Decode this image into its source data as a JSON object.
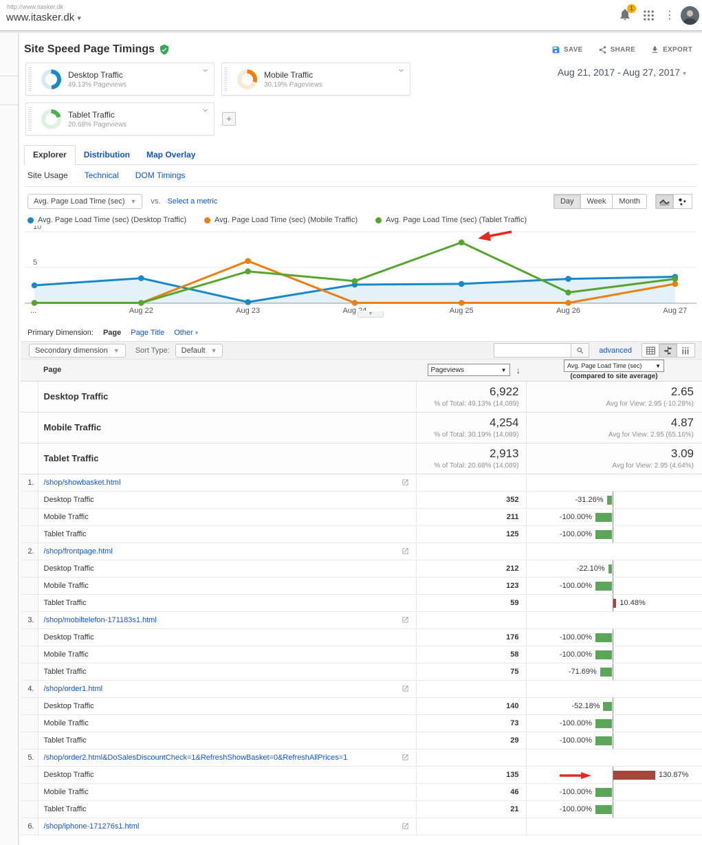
{
  "topbar": {
    "property_url": "http://www.itasker.dk",
    "account_name": "www.itasker.dk",
    "notifications_count": "1"
  },
  "report": {
    "title": "Site Speed Page Timings",
    "actions": {
      "save": "SAVE",
      "share": "SHARE",
      "export": "EXPORT"
    },
    "date_range": "Aug 21, 2017 - Aug 27, 2017"
  },
  "segments": [
    {
      "title": "Desktop Traffic",
      "subtitle": "49.13% Pageviews",
      "pct": 49.13,
      "color": "#1789cb"
    },
    {
      "title": "Mobile Traffic",
      "subtitle": "30.19% Pageviews",
      "pct": 30.19,
      "color": "#ee7e0e"
    },
    {
      "title": "Tablet Traffic",
      "subtitle": "20.68% Pageviews",
      "pct": 20.68,
      "color": "#4caf50"
    }
  ],
  "add_segment_label": "+",
  "tabs": {
    "explorer": "Explorer",
    "distribution": "Distribution",
    "map_overlay": "Map Overlay"
  },
  "subtabs": {
    "site_usage": "Site Usage",
    "technical": "Technical",
    "dom_timings": "DOM Timings"
  },
  "metric_bar": {
    "metric_select": "Avg. Page Load Time (sec)",
    "vs_label": "vs.",
    "select_metric": "Select a metric",
    "granularity": [
      "Day",
      "Week",
      "Month"
    ],
    "granularity_active": "Day"
  },
  "chart_data": {
    "type": "line",
    "x": [
      "Aug 21",
      "Aug 22",
      "Aug 23",
      "Aug 24",
      "Aug 25",
      "Aug 26",
      "Aug 27"
    ],
    "x_tick_labels": [
      "...",
      "Aug 22",
      "Aug 23",
      "Aug 24",
      "Aug 25",
      "Aug 26",
      "Aug 27"
    ],
    "ylim": [
      0,
      10
    ],
    "yticks": [
      5,
      10
    ],
    "legend_position": "top",
    "grid": true,
    "series": [
      {
        "name": "Avg. Page Load Time (sec) (Desktop Traffic)",
        "color": "#1789cb",
        "area": true,
        "values": [
          2.5,
          3.5,
          0.15,
          2.6,
          2.7,
          3.4,
          3.7
        ]
      },
      {
        "name": "Avg. Page Load Time (sec) (Mobile Traffic)",
        "color": "#ee7e0e",
        "area": false,
        "values": [
          0.05,
          0.05,
          5.9,
          0.05,
          0.05,
          0.05,
          2.7
        ]
      },
      {
        "name": "Avg. Page Load Time (sec) (Tablet Traffic)",
        "color": "#55a52f",
        "area": false,
        "values": [
          0.05,
          0.05,
          4.45,
          3.1,
          8.5,
          1.5,
          3.4
        ]
      }
    ],
    "annotation": {
      "type": "arrow",
      "target": "Aug 25 Tablet Traffic peak"
    }
  },
  "primary_dimension": {
    "label": "Primary Dimension:",
    "active": "Page",
    "options": [
      "Page",
      "Page Title",
      "Other"
    ]
  },
  "toolbar": {
    "secondary_dimension": "Secondary dimension",
    "sort_type_label": "Sort Type:",
    "sort_type_value": "Default",
    "search_value": "",
    "advanced": "advanced"
  },
  "table": {
    "col_page": "Page",
    "col_pageviews": "Pageviews",
    "col_metric": "Avg. Page Load Time (sec)",
    "col_metric_note": "(compared to site average)",
    "summary": [
      {
        "label": "Desktop Traffic",
        "pageviews": "6,922",
        "pageviews_note": "% of Total: 49.13% (14,089)",
        "metric": "2.65",
        "metric_note": "Avg for View: 2.95 (-10.28%)"
      },
      {
        "label": "Mobile Traffic",
        "pageviews": "4,254",
        "pageviews_note": "% of Total: 30.19% (14,089)",
        "metric": "4.87",
        "metric_note": "Avg for View: 2.95 (65.16%)"
      },
      {
        "label": "Tablet Traffic",
        "pageviews": "2,913",
        "pageviews_note": "% of Total: 20.68% (14,089)",
        "metric": "3.09",
        "metric_note": "Avg for View: 2.95 (4.64%)"
      }
    ],
    "groups": [
      {
        "index": "1.",
        "page": "/shop/showbasket.html",
        "rows": [
          {
            "label": "Desktop Traffic",
            "pageviews": "352",
            "pct": -31.26,
            "pct_label": "-31.26%"
          },
          {
            "label": "Mobile Traffic",
            "pageviews": "211",
            "pct": -100,
            "pct_label": "-100.00%"
          },
          {
            "label": "Tablet Traffic",
            "pageviews": "125",
            "pct": -100,
            "pct_label": "-100.00%"
          }
        ]
      },
      {
        "index": "2.",
        "page": "/shop/frontpage.html",
        "rows": [
          {
            "label": "Desktop Traffic",
            "pageviews": "212",
            "pct": -22.1,
            "pct_label": "-22.10%"
          },
          {
            "label": "Mobile Traffic",
            "pageviews": "123",
            "pct": -100,
            "pct_label": "-100.00%"
          },
          {
            "label": "Tablet Traffic",
            "pageviews": "59",
            "pct": 10.48,
            "pct_label": "10.48%"
          }
        ]
      },
      {
        "index": "3.",
        "page": "/shop/mobiltelefon-171183s1.html",
        "rows": [
          {
            "label": "Desktop Traffic",
            "pageviews": "176",
            "pct": -100,
            "pct_label": "-100.00%"
          },
          {
            "label": "Mobile Traffic",
            "pageviews": "58",
            "pct": -100,
            "pct_label": "-100.00%"
          },
          {
            "label": "Tablet Traffic",
            "pageviews": "75",
            "pct": -71.69,
            "pct_label": "-71.69%"
          }
        ]
      },
      {
        "index": "4.",
        "page": "/shop/order1.html",
        "rows": [
          {
            "label": "Desktop Traffic",
            "pageviews": "140",
            "pct": -52.18,
            "pct_label": "-52.18%"
          },
          {
            "label": "Mobile Traffic",
            "pageviews": "73",
            "pct": -100,
            "pct_label": "-100.00%"
          },
          {
            "label": "Tablet Traffic",
            "pageviews": "29",
            "pct": -100,
            "pct_label": "-100.00%"
          }
        ]
      },
      {
        "index": "5.",
        "page": "/shop/order2.html&DoSalesDiscountCheck=1&RefreshShowBasket=0&RefreshAllPrices=1",
        "rows": [
          {
            "label": "Desktop Traffic",
            "pageviews": "135",
            "pct": 130.87,
            "pct_label": "130.87%",
            "arrow": true
          },
          {
            "label": "Mobile Traffic",
            "pageviews": "46",
            "pct": -100,
            "pct_label": "-100.00%"
          },
          {
            "label": "Tablet Traffic",
            "pageviews": "21",
            "pct": -100,
            "pct_label": "-100.00%"
          }
        ]
      },
      {
        "index": "6.",
        "page": "/shop/iphone-171276s1.html",
        "rows": []
      }
    ]
  },
  "colors": {
    "bar_negative": "#5aa75a",
    "bar_positive": "#a8453d",
    "annotation_arrow": "#e8281e",
    "link": "#15c"
  }
}
